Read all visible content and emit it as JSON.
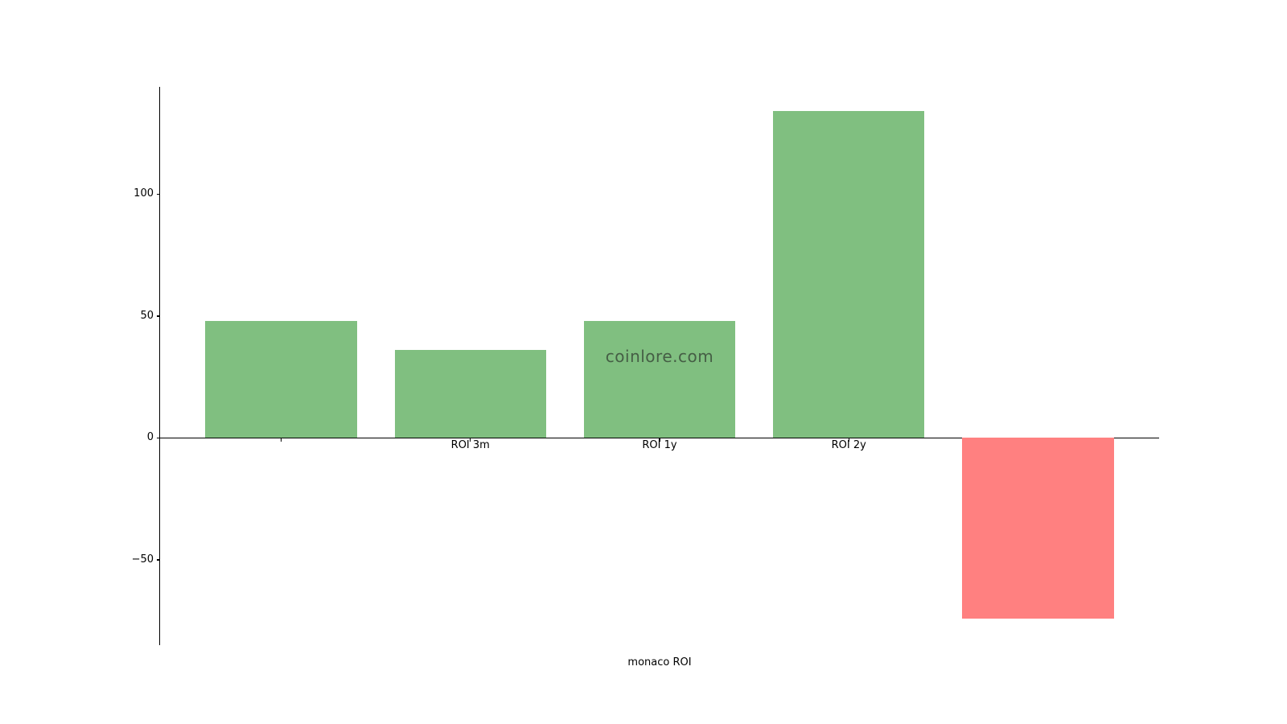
{
  "page": {
    "background": "#ffffff"
  },
  "watermark": {
    "text": "coinlore.com"
  },
  "chart_data": {
    "type": "bar",
    "title": "",
    "xlabel": "monaco ROI",
    "ylabel": "",
    "categories": [
      "",
      "ROI 3m",
      "ROI 1y",
      "ROI 2y",
      ""
    ],
    "values": [
      48,
      36,
      48,
      134,
      -74
    ],
    "bar_colors": [
      "#80bf80",
      "#80bf80",
      "#80bf80",
      "#80bf80",
      "#ff8080"
    ],
    "positive_color": "#80bf80",
    "negative_color": "#ff8080",
    "ylim": [
      -85,
      144
    ],
    "yticks": [
      -50,
      0,
      50,
      100
    ],
    "ytick_labels": [
      "−50",
      "0",
      "50",
      "100"
    ],
    "xlim": [
      -0.64,
      4.64
    ],
    "bar_width": 0.8,
    "x_tick_positions": [
      0,
      1,
      2,
      3
    ],
    "grid": false,
    "legend": false,
    "axis_color": "#000000"
  }
}
